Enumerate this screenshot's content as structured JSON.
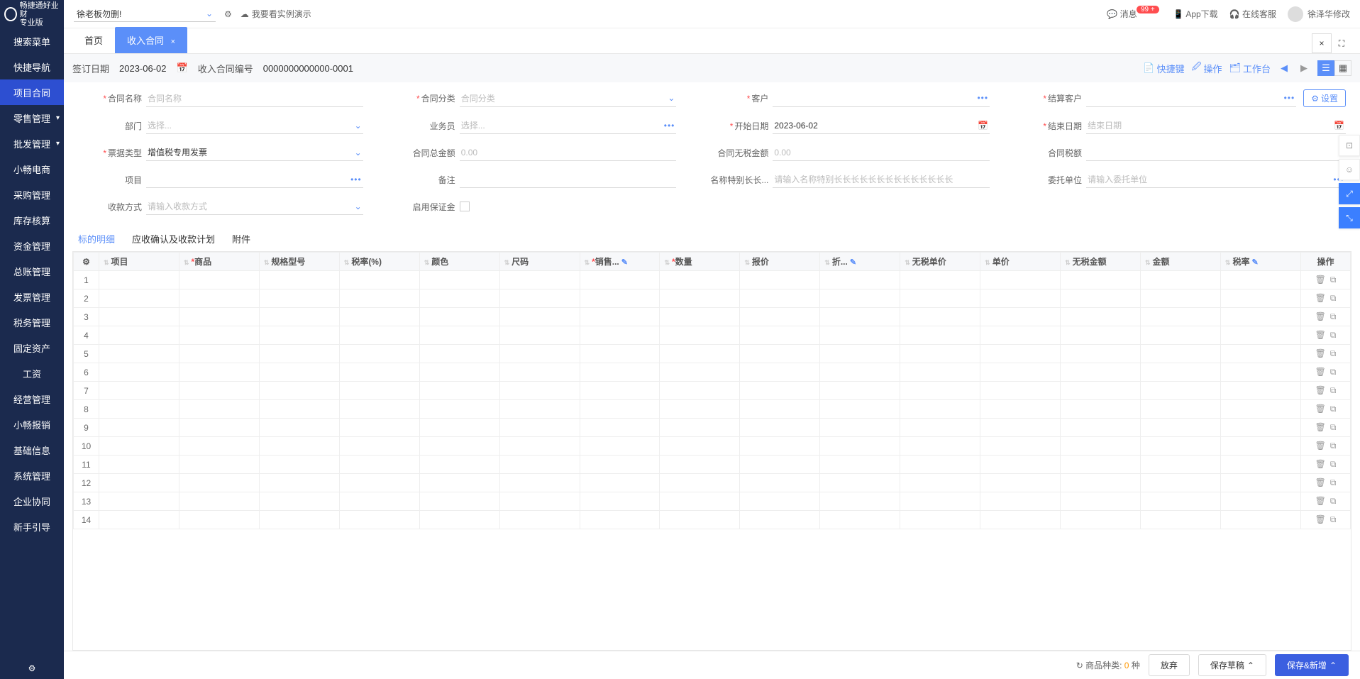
{
  "brand": {
    "name": "畅捷通好业财",
    "edition": "专业版"
  },
  "topbar": {
    "account": "徐老板勿删!",
    "demo": "我要看实例演示",
    "msg": "消息",
    "msg_badge": "99 +",
    "download": "App下载",
    "support": "在线客服",
    "user": "徐泽华修改"
  },
  "sidebar": {
    "items": [
      {
        "label": "搜索菜单"
      },
      {
        "label": "快捷导航"
      },
      {
        "label": "项目合同",
        "active": true
      },
      {
        "label": "零售管理",
        "sub": true
      },
      {
        "label": "批发管理",
        "sub": true
      },
      {
        "label": "小畅电商"
      },
      {
        "label": "采购管理"
      },
      {
        "label": "库存核算"
      },
      {
        "label": "资金管理"
      },
      {
        "label": "总账管理"
      },
      {
        "label": "发票管理"
      },
      {
        "label": "税务管理"
      },
      {
        "label": "固定资产"
      },
      {
        "label": "工资"
      },
      {
        "label": "经营管理"
      },
      {
        "label": "小畅报销"
      },
      {
        "label": "基础信息"
      },
      {
        "label": "系统管理"
      },
      {
        "label": "企业协同"
      },
      {
        "label": "新手引导"
      }
    ]
  },
  "tabs": {
    "home": "首页",
    "current": "收入合同"
  },
  "infoRow": {
    "signDateLabel": "签订日期",
    "signDate": "2023-06-02",
    "codeLabel": "收入合同编号",
    "code": "0000000000000-0001",
    "shortcut": "快捷键",
    "operate": "操作",
    "workbench": "工作台"
  },
  "form": {
    "contractName": {
      "label": "合同名称",
      "req": true,
      "placeholder": "合同名称"
    },
    "contractCat": {
      "label": "合同分类",
      "req": true,
      "placeholder": "合同分类"
    },
    "customer": {
      "label": "客户",
      "req": true
    },
    "settleCustomer": {
      "label": "结算客户",
      "req": true
    },
    "settingsBtn": "设置",
    "dept": {
      "label": "部门",
      "placeholder": "选择..."
    },
    "salesman": {
      "label": "业务员",
      "placeholder": "选择..."
    },
    "startDate": {
      "label": "开始日期",
      "req": true,
      "value": "2023-06-02"
    },
    "endDate": {
      "label": "结束日期",
      "req": true,
      "placeholder": "结束日期"
    },
    "invoiceType": {
      "label": "票据类型",
      "req": true,
      "value": "增值税专用发票"
    },
    "totalAmount": {
      "label": "合同总金额",
      "placeholder": "0.00"
    },
    "noTaxAmount": {
      "label": "合同无税金额",
      "placeholder": "0.00"
    },
    "taxAmount": {
      "label": "合同税额"
    },
    "project": {
      "label": "项目"
    },
    "remark": {
      "label": "备注"
    },
    "longName": {
      "label": "名称特别长长...",
      "placeholder": "请输入名称特别长长长长长长长长长长长长长长"
    },
    "entrust": {
      "label": "委托单位",
      "placeholder": "请输入委托单位"
    },
    "payMethod": {
      "label": "收款方式",
      "placeholder": "请输入收款方式"
    },
    "deposit": {
      "label": "启用保证金"
    }
  },
  "subtabs": [
    "标的明细",
    "应收确认及收款计划",
    "附件"
  ],
  "table": {
    "columns": [
      {
        "label": "项目"
      },
      {
        "label": "商品",
        "req": true
      },
      {
        "label": "规格型号"
      },
      {
        "label": "税率(%)"
      },
      {
        "label": "颜色"
      },
      {
        "label": "尺码"
      },
      {
        "label": "销售...",
        "req": true,
        "edit": true
      },
      {
        "label": "数量",
        "req": true
      },
      {
        "label": "报价"
      },
      {
        "label": "折...",
        "edit": true
      },
      {
        "label": "无税单价"
      },
      {
        "label": "单价"
      },
      {
        "label": "无税金额"
      },
      {
        "label": "金额"
      },
      {
        "label": "税率",
        "edit": true
      }
    ],
    "opsHeader": "操作",
    "rowCount": 14
  },
  "footer": {
    "kinds": "商品种类:",
    "zero": "0",
    "kinds2": "种",
    "discard": "放弃",
    "saveDraft": "保存草稿",
    "saveNew": "保存&新增"
  }
}
